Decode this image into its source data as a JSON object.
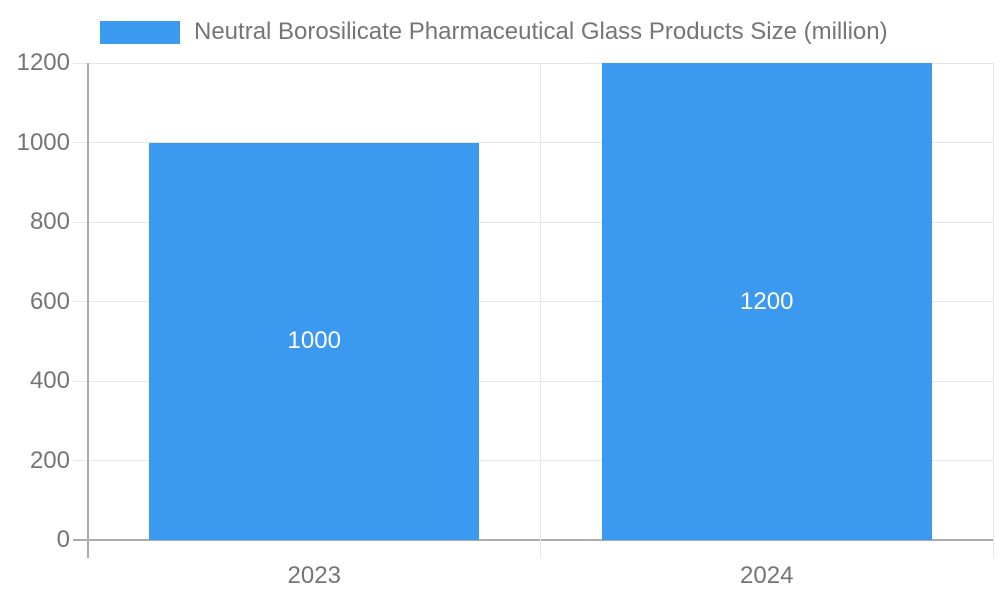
{
  "chart_data": {
    "type": "bar",
    "categories": [
      "2023",
      "2024"
    ],
    "series": [
      {
        "name": "Neutral Borosilicate Pharmaceutical Glass Products Size (million)",
        "values": [
          1000,
          1200
        ],
        "color": "#3B99EF"
      }
    ],
    "value_labels": [
      "1000",
      "1200"
    ],
    "title": "",
    "xlabel": "",
    "ylabel": "",
    "ylim": [
      0,
      1200
    ],
    "yticks": [
      0,
      200,
      400,
      600,
      800,
      1000,
      1200
    ],
    "grid": true,
    "legend_position": "top",
    "colors": {
      "bar": "#3B99EF",
      "grid_line": "#e6e6e6",
      "axis_line": "#ababab",
      "tick_text": "#757575",
      "bar_label_text": "#ffffff",
      "background": "#ffffff"
    }
  }
}
